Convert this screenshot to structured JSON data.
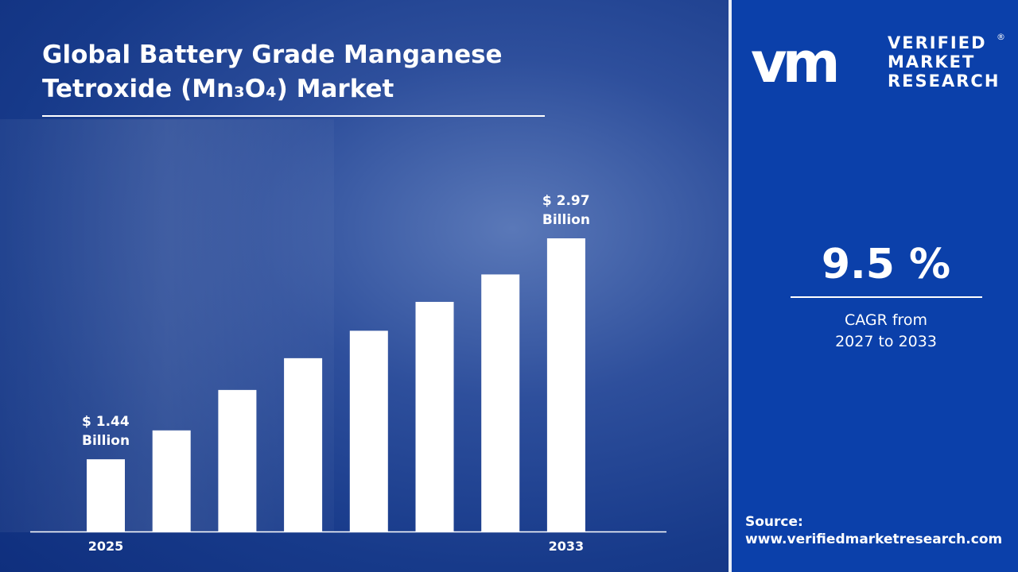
{
  "title_line1": "Global Battery Grade Manganese",
  "title_line2": "Tetroxide (Mn₃O₄) Market",
  "chart_data": {
    "type": "bar",
    "title": "Global Battery Grade Manganese Tetroxide (Mn₃O₄) Market",
    "categories": [
      "2025",
      "",
      "",
      "",
      "",
      "",
      "",
      "2033"
    ],
    "values": [
      1.44,
      1.64,
      1.92,
      2.14,
      2.33,
      2.53,
      2.72,
      2.97
    ],
    "unit": "USD Billion",
    "data_labels": [
      {
        "index": 0,
        "line1": "$ 1.44",
        "line2": "Billion"
      },
      {
        "index": 7,
        "line1": "$ 2.97",
        "line2": "Billion"
      }
    ],
    "ylim": [
      0.94,
      3.1
    ],
    "grid": false,
    "bar_color": "#ffffff"
  },
  "logo": {
    "mark": "vmr",
    "line1": "VERIFIED",
    "line2": "MARKET",
    "line3": "RESEARCH",
    "reg": "®"
  },
  "cagr": {
    "value": "9.5 %",
    "label_line1": "CAGR from",
    "label_line2": "2027 to 2033"
  },
  "source": {
    "label": "Source:",
    "url": "www.verifiedmarketresearch.com"
  },
  "colors": {
    "panel": "#0b40aa",
    "background": "#173a8a"
  }
}
